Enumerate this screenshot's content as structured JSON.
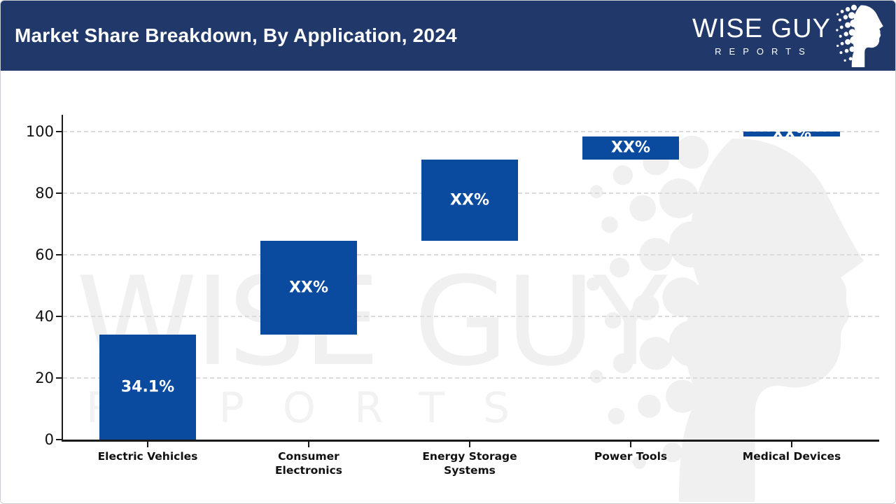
{
  "header": {
    "title": "Market Share Breakdown, By Application, 2024",
    "logo": {
      "line1": "WISE GUY",
      "line2": "REPORTS"
    }
  },
  "watermark": {
    "line1": "WISE GUY",
    "line2": "REPORTS"
  },
  "colors": {
    "header_bg": "#21396a",
    "bar": "#0b4b9f",
    "grid": "#dbdbdb",
    "axis": "#1a1a1a",
    "watermark": "#f0f0f0"
  },
  "chart_data": {
    "type": "bar",
    "subtype": "waterfall-percentage",
    "title": "Market Share Breakdown, By Application, 2024",
    "categories": [
      "Electric Vehicles",
      "Consumer Electronics",
      "Energy Storage Systems",
      "Power Tools",
      "Medical Devices"
    ],
    "category_lines": [
      [
        "Electric Vehicles"
      ],
      [
        "Consumer",
        "Electronics"
      ],
      [
        "Energy Storage",
        "Systems"
      ],
      [
        "Power Tools"
      ],
      [
        "Medical Devices"
      ]
    ],
    "segments": [
      {
        "category": "Electric Vehicles",
        "start": 0,
        "end": 34.1,
        "value": 34.1,
        "label": "34.1%"
      },
      {
        "category": "Consumer Electronics",
        "start": 34.1,
        "end": 64.5,
        "value": 30.4,
        "label": "XX%"
      },
      {
        "category": "Energy Storage Systems",
        "start": 64.5,
        "end": 91.0,
        "value": 26.5,
        "label": "XX%"
      },
      {
        "category": "Power Tools",
        "start": 91.0,
        "end": 98.5,
        "value": 7.5,
        "label": "XX%"
      },
      {
        "category": "Medical Devices",
        "start": 98.5,
        "end": 100.0,
        "value": 1.5,
        "label": "XX%"
      }
    ],
    "xlabel": "",
    "ylabel": "",
    "ylim": [
      0,
      105
    ],
    "yticks": [
      0,
      20,
      40,
      60,
      80,
      100
    ],
    "grid": "horizontal-dashed",
    "legend": "none",
    "bar_color": "#0b4b9f",
    "bar_label_color": "#ffffff"
  }
}
